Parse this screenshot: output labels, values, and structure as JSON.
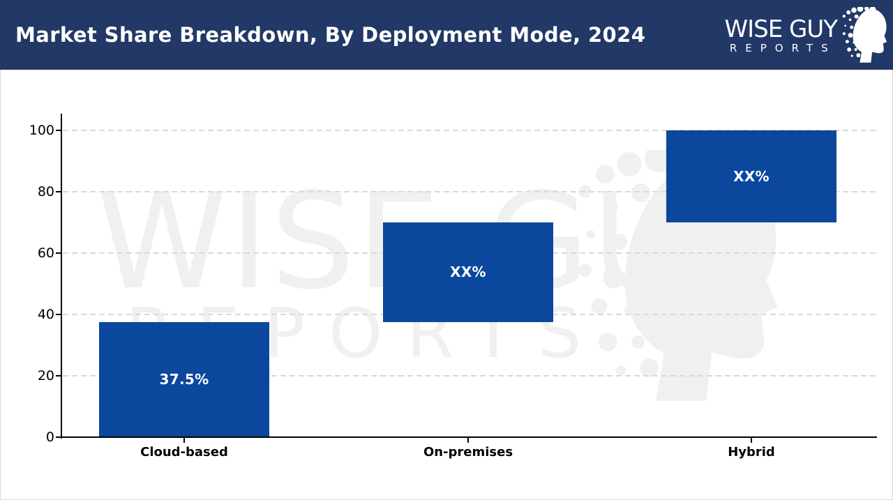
{
  "header": {
    "title": "Market Share Breakdown, By Deployment Mode, 2024",
    "logo": {
      "wordmark": "WISE GUY",
      "subtext": "REPORTS"
    }
  },
  "watermark": {
    "wordmark": "WISE GUY",
    "subtext": "REPORTS"
  },
  "chart_data": {
    "type": "bar",
    "subtype": "floating-segment-waterfall",
    "title": "Market Share Breakdown, By Deployment Mode, 2024",
    "categories": [
      "Cloud-based",
      "On-premises",
      "Hybrid"
    ],
    "series": [
      {
        "name": "Market Share (%)",
        "segments": [
          {
            "category": "Cloud-based",
            "start": 0,
            "end": 37.5,
            "label": "37.5%"
          },
          {
            "category": "On-premises",
            "start": 37.5,
            "end": 70,
            "label": "XX%"
          },
          {
            "category": "Hybrid",
            "start": 70,
            "end": 100,
            "label": "XX%"
          }
        ]
      }
    ],
    "xlabel": "",
    "ylabel": "",
    "ylim": [
      0,
      100
    ],
    "yticks": [
      0,
      20,
      40,
      60,
      80,
      100
    ],
    "grid": {
      "horizontal": true,
      "style": "dashed"
    },
    "legend": "none"
  },
  "colors": {
    "header_bg": "#223866",
    "bar": "#0B489D",
    "gridline": "#D9D9D9",
    "axis": "#000000",
    "tick_label": "#000000",
    "bar_label": "#FFFFFF",
    "title_text": "#FFFFFF",
    "watermark": "#F0F0F0",
    "frame_border": "#D6D6D6"
  }
}
